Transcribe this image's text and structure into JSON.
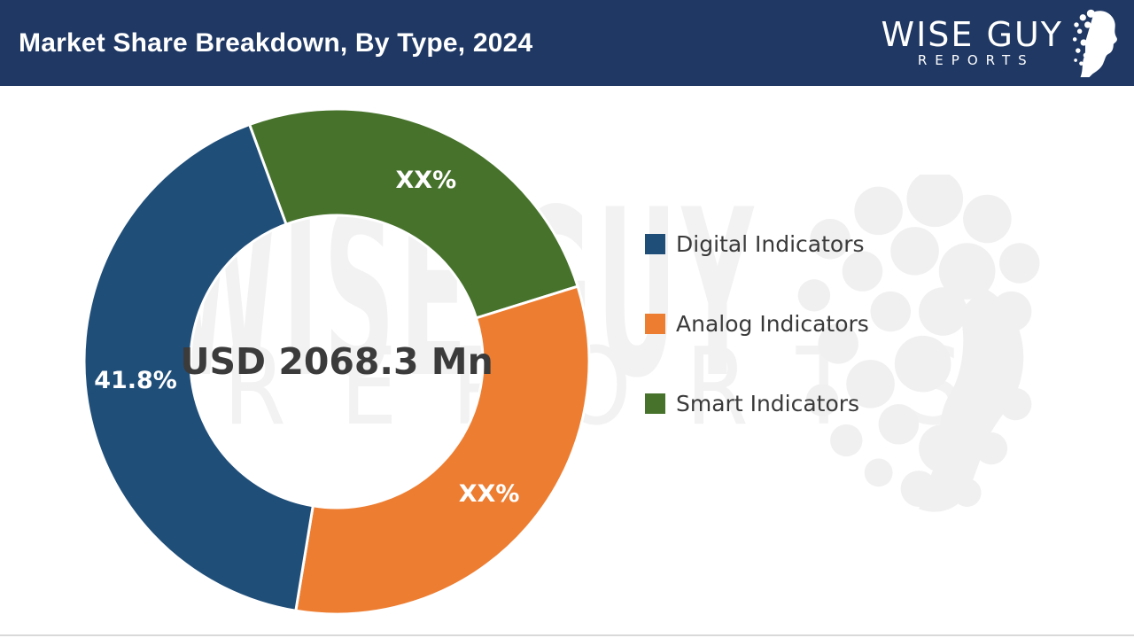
{
  "header": {
    "title": "Market Share Breakdown, By Type, 2024",
    "logo": {
      "line1": "WISE GUY",
      "line2": "REPORTS"
    }
  },
  "watermark": {
    "line1": "WISE GUY",
    "line2": "REPORTS"
  },
  "colors": {
    "header_bg": "#1F3864",
    "title_text": "#FFFFFF",
    "digital_blue": "#1F4E79",
    "analog_orange": "#ED7D31",
    "smart_green": "#46722B",
    "center_text": "#3B3B3B",
    "legend_text": "#3A3A3A",
    "watermark_gray": "#F2F2F2",
    "bottom_line_gray": "#D9D9D9",
    "segment_separator": "#FFFFFF"
  },
  "chart_data": {
    "type": "pie",
    "subtype": "donut",
    "title": "Market Share Breakdown, By Type, 2024",
    "center_text": "USD 2068.3 Mn",
    "donut_hole_ratio": 0.58,
    "rotation_deg": -20.2,
    "direction": "clockwise",
    "legend_position": "right",
    "segments": [
      {
        "name": "Digital Indicators",
        "value_pct": 41.8,
        "label": "41.8%",
        "masked": false,
        "color": "#1F4E79"
      },
      {
        "name": "Analog Indicators",
        "value_pct": 32.4,
        "label": "XX%",
        "masked": true,
        "color": "#ED7D31"
      },
      {
        "name": "Smart Indicators",
        "value_pct": 25.8,
        "label": "XX%",
        "masked": true,
        "color": "#46722B"
      }
    ]
  }
}
